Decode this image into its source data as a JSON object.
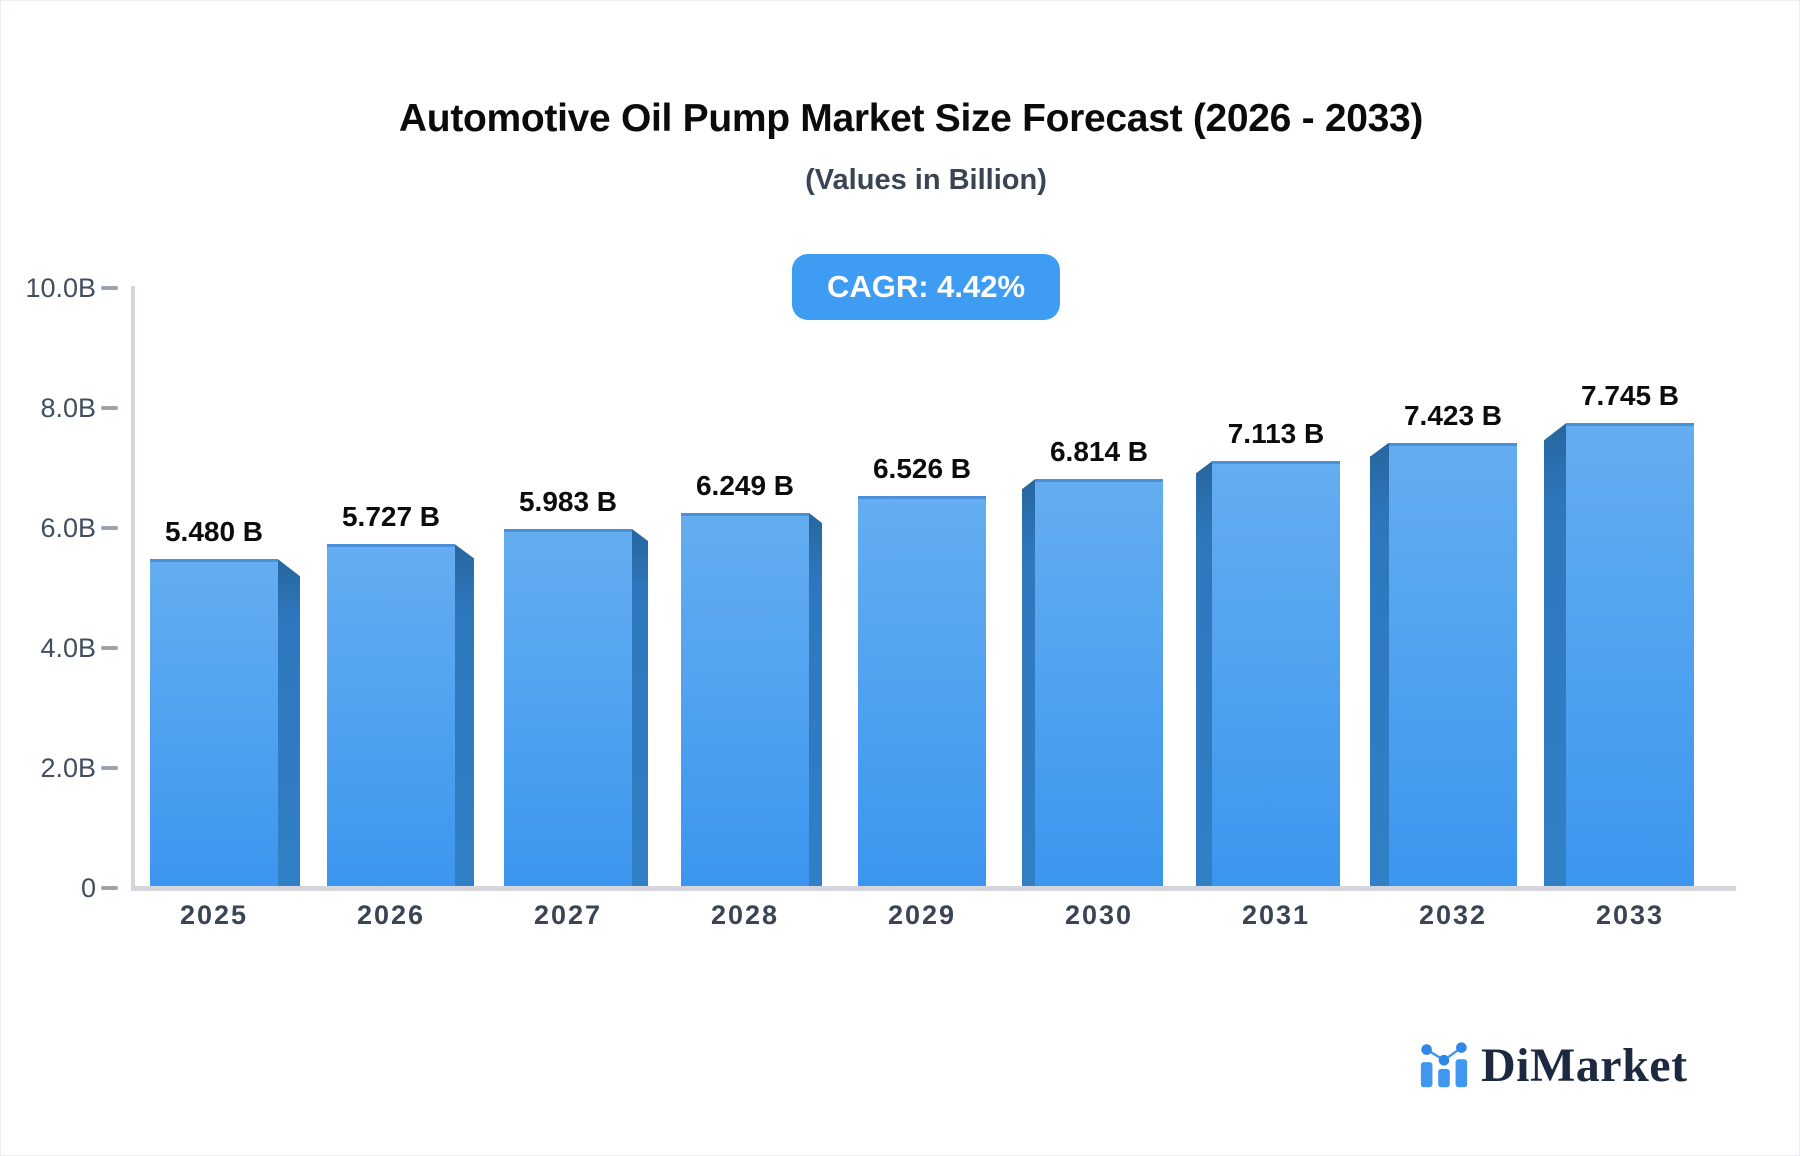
{
  "title": "Automotive Oil Pump Market Size Forecast (2026 - 2033)",
  "subtitle": "(Values in Billion)",
  "badge": {
    "label": "CAGR: 4.42%",
    "bg": "#3f9cf3",
    "text_color": "#ffffff"
  },
  "chart_data": {
    "type": "bar",
    "title": "Automotive Oil Pump Market Size Forecast (2026 - 2033)",
    "subtitle": "(Values in Billion)",
    "categories": [
      "2025",
      "2026",
      "2027",
      "2028",
      "2029",
      "2030",
      "2031",
      "2032",
      "2033"
    ],
    "values": [
      5.48,
      5.727,
      5.983,
      6.249,
      6.526,
      6.814,
      7.113,
      7.423,
      7.745
    ],
    "value_labels": [
      "5.480 B",
      "5.727 B",
      "5.983 B",
      "6.249 B",
      "6.526 B",
      "6.814 B",
      "7.113 B",
      "7.423 B",
      "7.745 B"
    ],
    "annotation": "CAGR: 4.42%",
    "xlabel": "",
    "ylabel": "",
    "ylim": [
      0,
      10
    ],
    "grid": false,
    "legend": "none",
    "y_ticks": [
      {
        "label": "0",
        "value": 0
      },
      {
        "label": "2.0B",
        "value": 2
      },
      {
        "label": "4.0B",
        "value": 4
      },
      {
        "label": "6.0B",
        "value": 6
      },
      {
        "label": "8.0B",
        "value": 8
      },
      {
        "label": "10.0B",
        "value": 10
      }
    ],
    "bar_color_top": "#64adf0",
    "bar_color_bottom": "#3c96ef",
    "bar_side_color": "#2e77bd",
    "axis_color": "#d4d6db",
    "style": "3d-extruded, perspective vanishing toward center bar"
  },
  "logo": {
    "text": "DiMarket",
    "icon": "mini-bar-chart-icon",
    "text_color": "#1c2941",
    "accent": "#3f97ef"
  }
}
